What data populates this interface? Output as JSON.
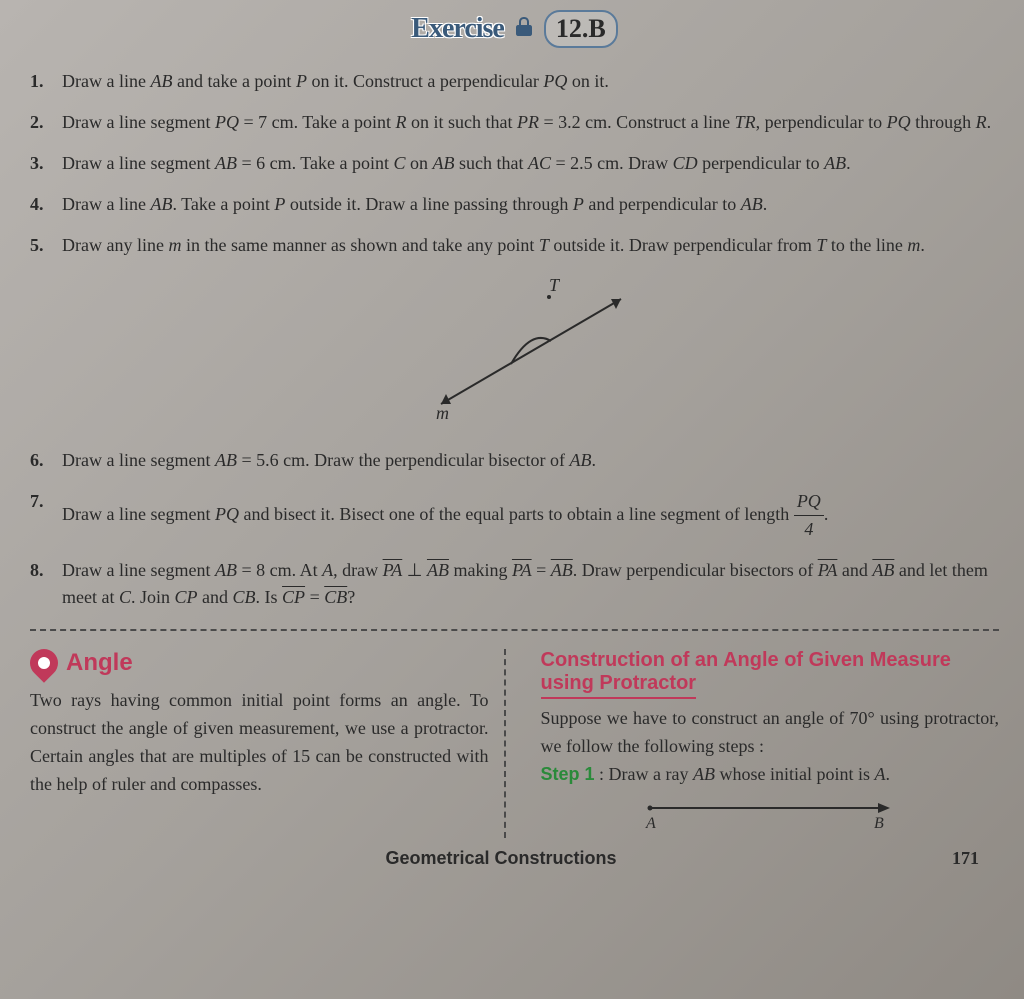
{
  "header": {
    "exercise_label": "Exercise",
    "exercise_number": "12.B"
  },
  "problems": {
    "q1": "Draw a line <span class='math-var'>AB</span> and take a point <span class='math-var'>P</span> on it. Construct a perpendicular <span class='math-var'>PQ</span> on it.",
    "q2": "Draw a line segment <span class='math-var'>PQ</span> = 7 cm. Take a point <span class='math-var'>R</span> on it such that <span class='math-var'>PR</span> = 3.2 cm. Construct a line <span class='math-var'>TR</span>, perpendicular to <span class='math-var'>PQ</span> through <span class='math-var'>R</span>.",
    "q3": "Draw a line segment <span class='math-var'>AB</span> = 6 cm. Take a point <span class='math-var'>C</span> on <span class='math-var'>AB</span> such that <span class='math-var'>AC</span> = 2.5 cm. Draw <span class='math-var'>CD</span> perpendicular to <span class='math-var'>AB</span>.",
    "q4": "Draw a line <span class='math-var'>AB</span>. Take a point <span class='math-var'>P</span> outside it. Draw a line passing through <span class='math-var'>P</span> and perpendicular to <span class='math-var'>AB</span>.",
    "q5": "Draw any line <span class='math-var'>m</span> in the same manner as shown and take any point <span class='math-var'>T</span> outside it. Draw perpendicular from <span class='math-var'>T</span> to the line <span class='math-var'>m</span>.",
    "q6": "Draw a line segment <span class='math-var'>AB</span> = 5.6 cm. Draw the perpendicular bisector of <span class='math-var'>AB</span>.",
    "q7": "Draw a line segment <span class='math-var'>PQ</span> and bisect it. Bisect one of the equal parts to obtain a line segment of length <span class='frac'><span class='num'>PQ</span><span class='den'>4</span></span>.",
    "q8": "Draw a line segment <span class='math-var'>AB</span> = 8 cm. At <span class='math-var'>A</span>, draw <span class='overline'>PA</span> ⊥ <span class='overline'>AB</span> making <span class='overline'>PA</span> = <span class='overline'>AB</span>. Draw perpendicular bisectors of <span class='overline'>PA</span> and <span class='overline'>AB</span> and let them meet at <span class='math-var'>C</span>. Join <span class='math-var'>CP</span> and <span class='math-var'>CB</span>. Is <span class='overline'>CP</span> = <span class='overline'>CB</span>?"
  },
  "diagram_q5": {
    "label_T": "T",
    "label_m": "m"
  },
  "angle_section": {
    "heading": "Angle",
    "text": "Two rays having common initial point forms an angle. To construct the angle of given measurement, we use a protractor. Certain angles that are multiples of 15 can be constructed with the help of ruler and compasses."
  },
  "construction_section": {
    "heading_line1": "Construction of an Angle of Given Measure",
    "heading_line2": "using Protractor",
    "text": "Suppose we have to construct an angle of 70° using protractor, we follow the following steps :",
    "step1_label": "Step 1",
    "step1_text": "Draw a ray <span class='math-var'>AB</span> whose initial point is <span class='math-var'>A</span>.",
    "ray_A": "A",
    "ray_B": "B"
  },
  "footer": {
    "title": "Geometrical Constructions",
    "page": "171"
  },
  "colors": {
    "accent": "#c0395a",
    "step": "#2a8a3a",
    "header_blue": "#3a5a7a"
  }
}
